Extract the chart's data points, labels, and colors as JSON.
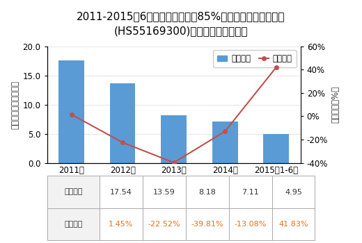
{
  "title_line1": "2011-2015年6月人造纤维短纤＜85%与其他纤维混纺色织布",
  "title_line2": "(HS55169300)出口总额及增速统计",
  "categories": [
    "2011年",
    "2012年",
    "2013年",
    "2014年",
    "2015年1-6月"
  ],
  "bar_values": [
    17.54,
    13.59,
    8.18,
    7.11,
    4.95
  ],
  "growth_values": [
    1.45,
    -22.52,
    -39.81,
    -13.08,
    41.83
  ],
  "bar_color": "#5b9bd5",
  "line_color": "#c0504d",
  "bar_label": "出口金额",
  "line_label": "同比增长",
  "ylabel_left": "出口金额（百万美元）",
  "ylabel_right": "同比增速（%）",
  "ylim_left": [
    0,
    20
  ],
  "ylim_right": [
    -40,
    60
  ],
  "yticks_left": [
    0.0,
    5.0,
    10.0,
    15.0,
    20.0
  ],
  "yticks_right": [
    -40,
    -20,
    0,
    20,
    40,
    60
  ],
  "ytick_labels_right": [
    "-40%",
    "-20%",
    "0%",
    "20%",
    "40%",
    "60%"
  ],
  "table_row1_label": "出口金额",
  "table_row2_label": "同比增长",
  "table_row1_values": [
    "17.54",
    "13.59",
    "8.18",
    "7.11",
    "4.95"
  ],
  "table_row2_values": [
    "1.45%",
    "-22.52%",
    "-39.81%",
    "-13.08%",
    "41.83%"
  ],
  "bg_color": "#ffffff",
  "grid_color": "#e8e8e8",
  "title_fontsize": 11,
  "axis_fontsize": 8.5,
  "table_fontsize": 8,
  "row1_text_color": "#333333",
  "row2_text_color": "#e07020",
  "label_color": "#333333",
  "border_color": "#aaaaaa",
  "row_label_bg": "#f2f2f2"
}
